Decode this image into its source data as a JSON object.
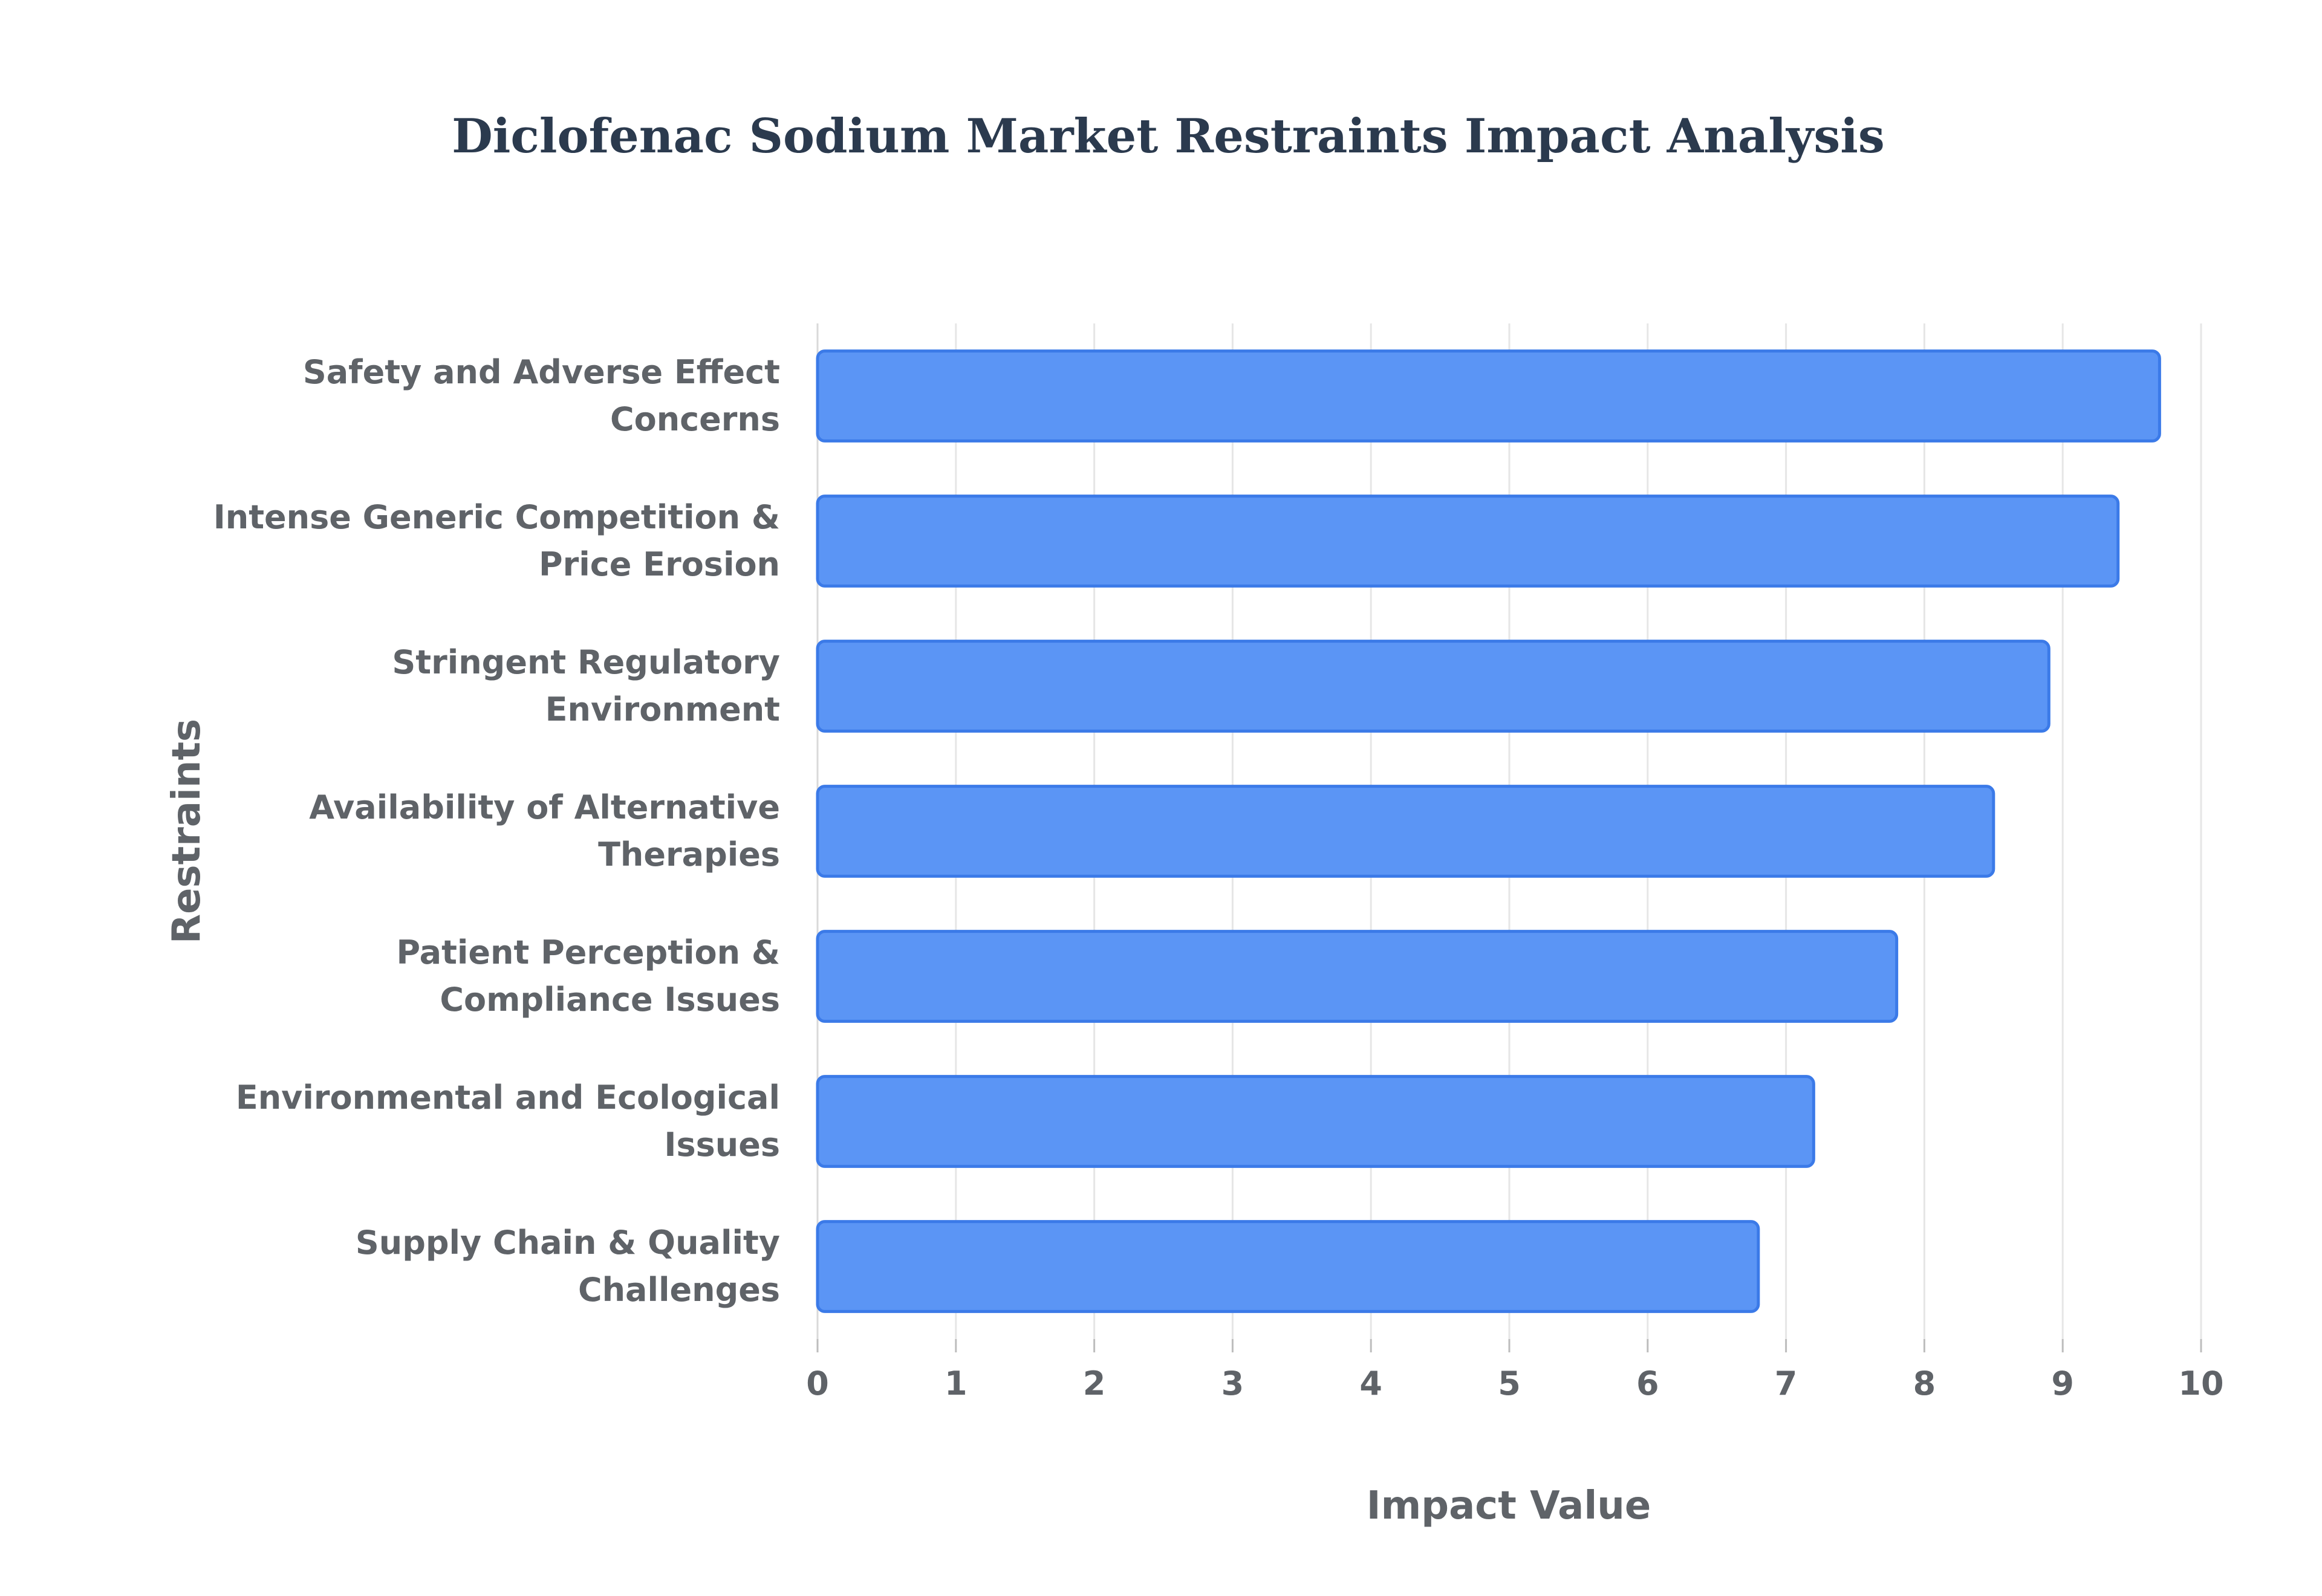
{
  "chart_data": {
    "type": "bar",
    "orientation": "horizontal",
    "title": "Diclofenac Sodium Market Restraints Impact Analysis",
    "xlabel": "Impact Value",
    "ylabel": "Restraints",
    "xlim": [
      0,
      10
    ],
    "xticks": [
      0,
      1,
      2,
      3,
      4,
      5,
      6,
      7,
      8,
      9,
      10
    ],
    "grid": true,
    "legend": "none",
    "bar_color": "#5b95f5",
    "bar_edge_color": "#3b7ae8",
    "categories": [
      [
        "Safety and Adverse Effect",
        "Concerns"
      ],
      [
        "Intense Generic Competition &",
        "Price Erosion"
      ],
      [
        "Stringent Regulatory",
        "Environment"
      ],
      [
        "Availability of Alternative",
        "Therapies"
      ],
      [
        "Patient Perception &",
        "Compliance Issues"
      ],
      [
        "Environmental and Ecological",
        "Issues"
      ],
      [
        "Supply Chain & Quality",
        "Challenges"
      ]
    ],
    "values": [
      9.7,
      9.4,
      8.9,
      8.5,
      7.8,
      7.2,
      6.8
    ]
  }
}
